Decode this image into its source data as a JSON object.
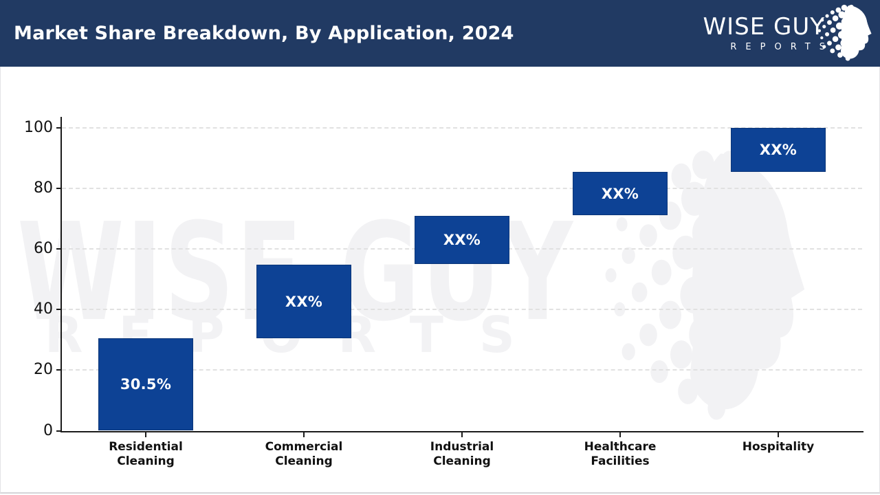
{
  "header": {
    "title": "Market Share Breakdown, By Application, 2024",
    "bg_color": "#213a63",
    "logo": {
      "line1": "WISE GUY",
      "line2": "REPORTS"
    }
  },
  "watermark": {
    "line1": "WISE GUY",
    "line2": "REPORTS"
  },
  "chart_data": {
    "type": "bar",
    "subtype": "waterfall",
    "title": "Market Share Breakdown, By Application, 2024",
    "categories": [
      "Residential Cleaning",
      "Commercial Cleaning",
      "Industrial Cleaning",
      "Healthcare Facilities",
      "Hospitality"
    ],
    "category_lines": [
      [
        "Residential",
        "Cleaning"
      ],
      [
        "Commercial",
        "Cleaning"
      ],
      [
        "Industrial",
        "Cleaning"
      ],
      [
        "Healthcare",
        "Facilities"
      ],
      [
        "Hospitality"
      ]
    ],
    "segments": [
      {
        "category": "Residential Cleaning",
        "start": 0,
        "end": 30.5,
        "label": "30.5%"
      },
      {
        "category": "Commercial Cleaning",
        "start": 30.5,
        "end": 54.8,
        "label": "XX%"
      },
      {
        "category": "Industrial Cleaning",
        "start": 55.0,
        "end": 71.0,
        "label": "XX%"
      },
      {
        "category": "Healthcare Facilities",
        "start": 71.2,
        "end": 85.4,
        "label": "XX%"
      },
      {
        "category": "Hospitality",
        "start": 85.4,
        "end": 100,
        "label": "XX%"
      }
    ],
    "y_ticks": [
      0,
      20,
      40,
      60,
      80,
      100
    ],
    "ylim": [
      0,
      104
    ],
    "xlabel": "",
    "ylabel": "",
    "bar_color": "#0d4295",
    "bar_edge_color": "#0a3578",
    "bar_label_color": "#ffffff",
    "grid": true,
    "grid_style": "dashed",
    "grid_color": "#e1e1e1",
    "axis_color": "#1a1a1a",
    "legend": null
  }
}
